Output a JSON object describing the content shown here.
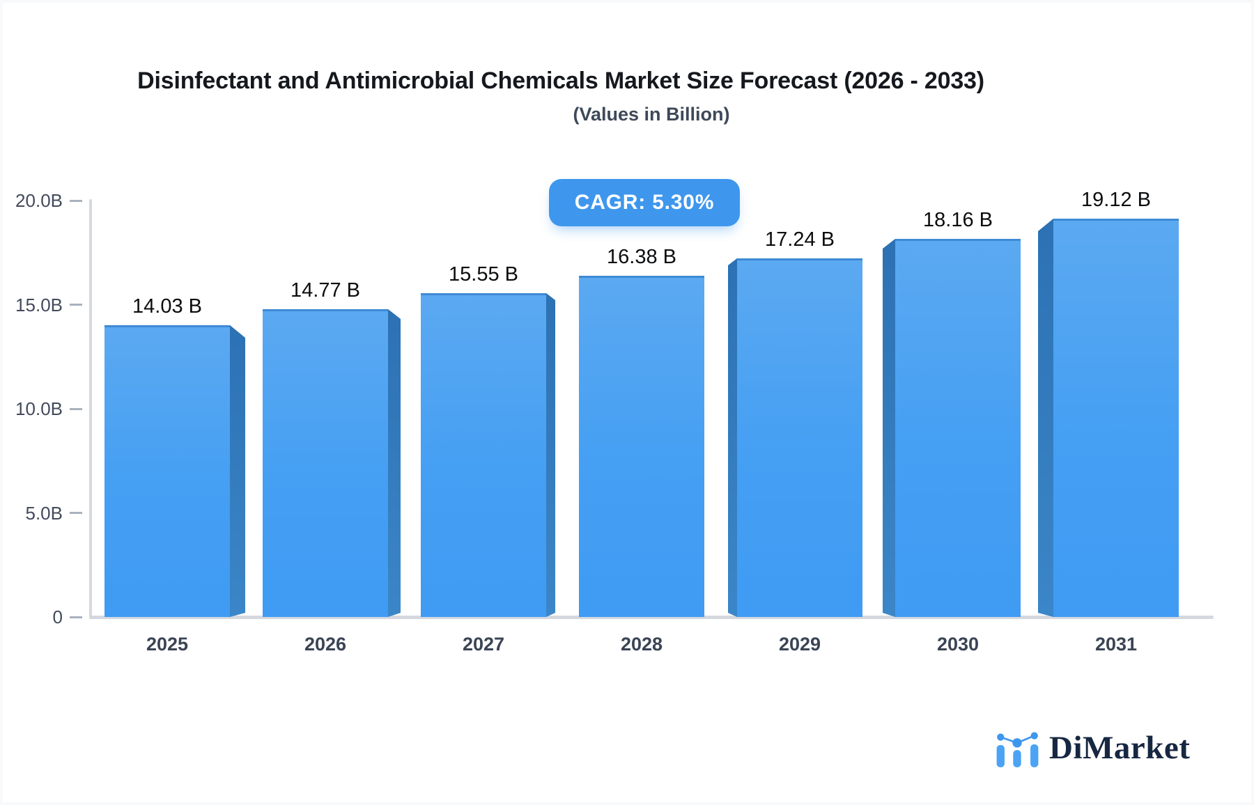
{
  "header": {
    "title": "Disinfectant and Antimicrobial Chemicals Market Size Forecast (2026 - 2033)",
    "subtitle": "(Values in Billion)"
  },
  "badge": {
    "label": "CAGR: 5.30%"
  },
  "chart_data": {
    "type": "bar",
    "title": "Disinfectant and Antimicrobial Chemicals Market Size Forecast (2026 - 2033)",
    "subtitle": "(Values in Billion)",
    "annotation": "CAGR: 5.30%",
    "categories": [
      "2025",
      "2026",
      "2027",
      "2028",
      "2029",
      "2030",
      "2031"
    ],
    "values": [
      14.03,
      14.77,
      15.55,
      16.38,
      17.24,
      18.16,
      19.12
    ],
    "value_labels": [
      "14.03 B",
      "14.77 B",
      "15.55 B",
      "16.38 B",
      "17.24 B",
      "18.16 B",
      "19.12 B"
    ],
    "xlabel": "",
    "ylabel": "",
    "ylim": [
      0,
      20
    ],
    "yticks": [
      {
        "value": 20,
        "label": "20.0B"
      },
      {
        "value": 15,
        "label": "15.0B"
      },
      {
        "value": 10,
        "label": "10.0B"
      },
      {
        "value": 5,
        "label": "5.0B"
      },
      {
        "value": 0,
        "label": "0"
      }
    ],
    "grid": false,
    "legend_position": "none",
    "style": "3d-perspective-bars"
  },
  "logo": {
    "text": "DiMarket",
    "icon": "mini-bar-line-chart-icon"
  },
  "colors": {
    "bar_front_top": "#5ba9f1",
    "bar_front_bottom": "#3f9bf3",
    "bar_side_dark": "#2c71b3",
    "bar_side_light": "#3b86c8",
    "bar_top_edge": "#3e8ad5",
    "badge_blue": "#3e97ed",
    "axis_gray": "#d5d8de",
    "tick_gray": "#a9b1bc",
    "y_label_gray": "#414b5c",
    "x_label_gray": "#3a4454",
    "value_label_black": "#0b0c0e",
    "title_black": "#15181d",
    "subtitle_slate": "#3e4959",
    "logo_navy": "#172742",
    "logo_blue": "#4ba3f5"
  }
}
